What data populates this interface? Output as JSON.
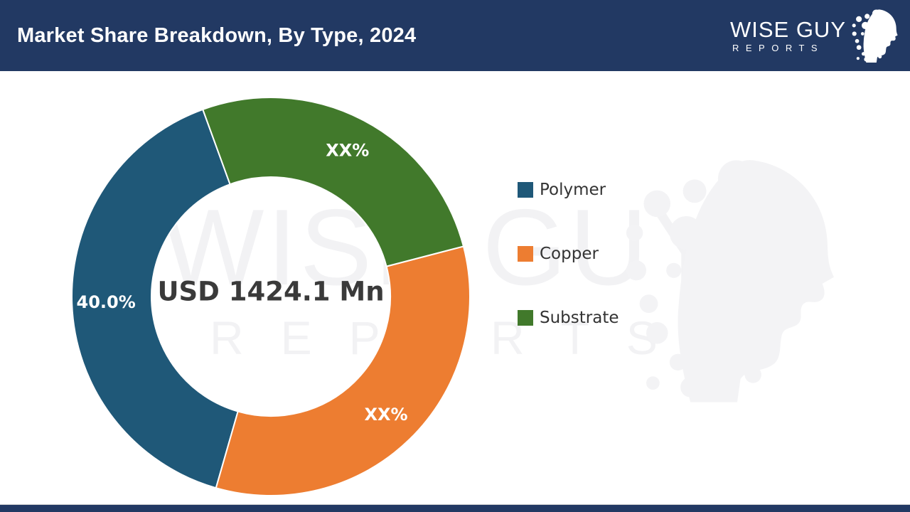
{
  "header": {
    "title": "Market Share Breakdown, By Type, 2024",
    "logo": {
      "line1": "WISE GUY",
      "line2": "REPORTS"
    }
  },
  "watermark": {
    "line1": "WISE GUY",
    "line2": "REPORTS"
  },
  "chart_data": {
    "type": "pie",
    "subtype": "donut",
    "title": "Market Share Breakdown, By Type, 2024",
    "center_label": "USD 1424.1 Mn",
    "categories": [
      "Polymer",
      "Copper",
      "Substrate"
    ],
    "series": [
      {
        "name": "Polymer",
        "value": 40.0,
        "label": "40.0%",
        "color": "#1F5878"
      },
      {
        "name": "Copper",
        "value": 33.5,
        "label": "XX%",
        "color": "#ED7D31"
      },
      {
        "name": "Substrate",
        "value": 26.5,
        "label": "XX%",
        "color": "#41792B"
      }
    ],
    "units": "percent of market share",
    "start_angle_deg": 110,
    "direction": "counterclockwise",
    "donut_hole_ratio": 0.6,
    "legend_position": "right",
    "grid": false
  },
  "theme": {
    "header_bg": "#223963",
    "footer_bg": "#223963",
    "text_dark": "#3A3A3A",
    "slice_label_color": "#FFFFFF",
    "watermark_color": "#F2F2F4"
  }
}
